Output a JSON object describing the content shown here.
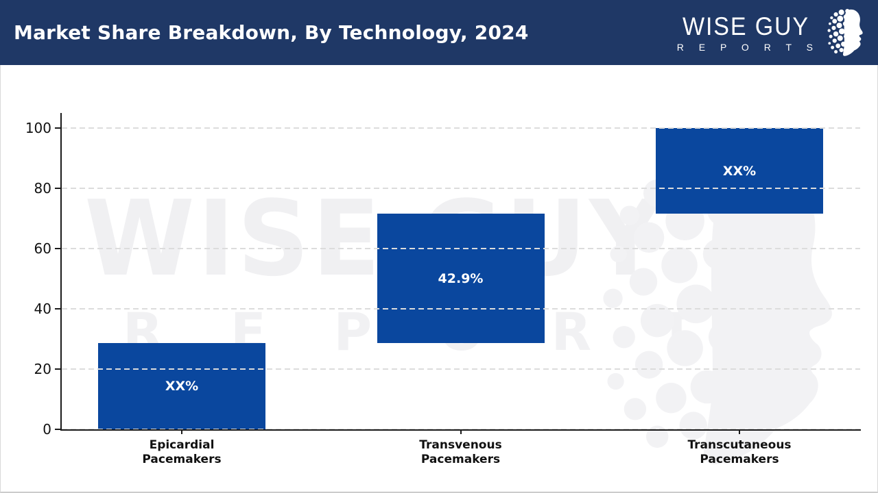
{
  "header": {
    "title": "Market Share Breakdown, By Technology, 2024",
    "logo_line1": "WISE GUY",
    "logo_line2": "R E P O R T S"
  },
  "watermark": {
    "line1": "WISE GUY",
    "line2": "R E P O R T S"
  },
  "chart_data": {
    "type": "bar",
    "subtype": "waterfall",
    "title": "Market Share Breakdown, By Technology, 2024",
    "categories": [
      [
        "Epicardial",
        "Pacemakers"
      ],
      [
        "Transvenous",
        "Pacemakers"
      ],
      [
        "Transcutaneous",
        "Pacemakers"
      ]
    ],
    "bars": [
      {
        "category": "Epicardial Pacemakers",
        "start": 0,
        "end": 28.6,
        "label": "XX%"
      },
      {
        "category": "Transvenous Pacemakers",
        "start": 28.6,
        "end": 71.5,
        "label": "42.9%"
      },
      {
        "category": "Transcutaneous Pacemakers",
        "start": 71.5,
        "end": 100,
        "label": "XX%"
      }
    ],
    "ylim": [
      0,
      100
    ],
    "yticks": [
      0,
      20,
      40,
      60,
      80,
      100
    ],
    "grid": true,
    "legend": false,
    "colors": {
      "bar": "#0a479e",
      "grid": "#dcdcdc",
      "axis": "#1a1a1a",
      "header_bg": "#1f3866",
      "bar_label": "#ffffff",
      "watermark": "#f0f0f2"
    }
  }
}
